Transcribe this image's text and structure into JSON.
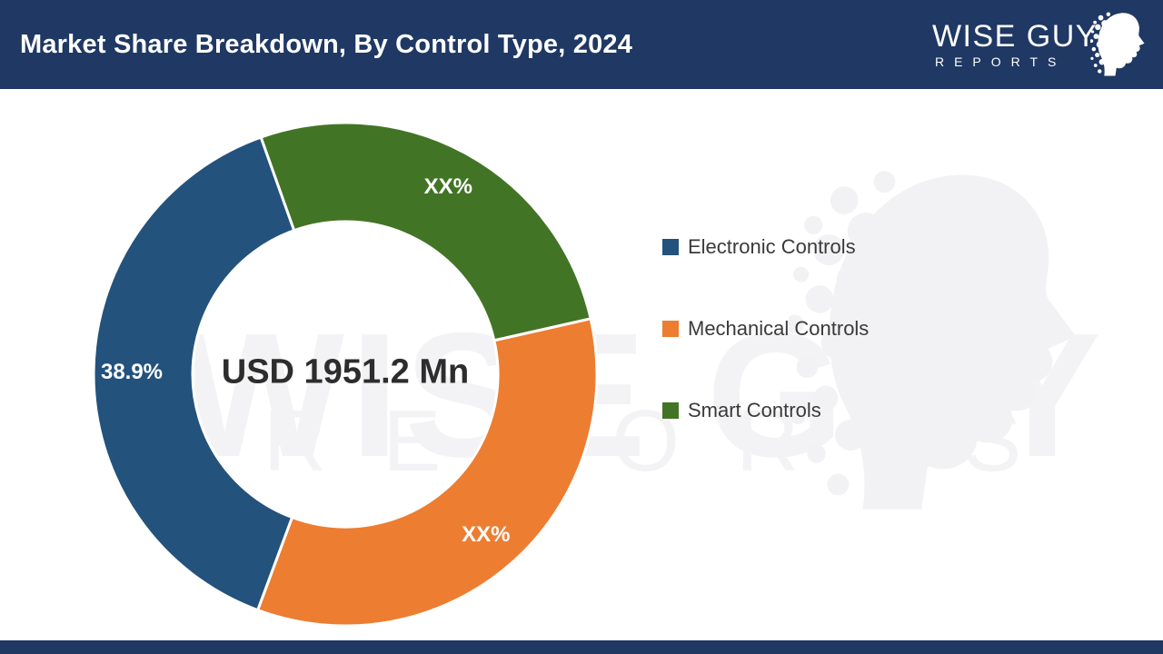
{
  "header": {
    "title": "Market Share Breakdown, By Control Type, 2024",
    "logo": {
      "line1": "WISE GUY",
      "line2": "REPORTS"
    },
    "bg_color": "#1f3864"
  },
  "watermark": {
    "line1": "WISE GUY",
    "line2": "REPORTS"
  },
  "chart_data": {
    "type": "pie",
    "subtype": "donut",
    "title": "Market Share Breakdown, By Control Type, 2024",
    "center_label": "USD 1951.2 Mn",
    "legend_position": "right",
    "start_angle_deg_from_top": -19.6,
    "categories": [
      "Smart Controls",
      "Mechanical Controls",
      "Electronic Controls"
    ],
    "segments": [
      {
        "name": "Smart Controls",
        "display_label": "XX%",
        "pct_drawn": 26.9,
        "color": "#427426"
      },
      {
        "name": "Mechanical Controls",
        "display_label": "XX%",
        "pct_drawn": 34.2,
        "color": "#ed7d31"
      },
      {
        "name": "Electronic Controls",
        "display_label": "38.9%",
        "pct_drawn": 38.9,
        "color": "#23527c"
      }
    ]
  },
  "legend": {
    "items": [
      {
        "label": "Electronic Controls",
        "color": "#23527c"
      },
      {
        "label": "Mechanical Controls",
        "color": "#ed7d31"
      },
      {
        "label": "Smart Controls",
        "color": "#427426"
      }
    ]
  }
}
